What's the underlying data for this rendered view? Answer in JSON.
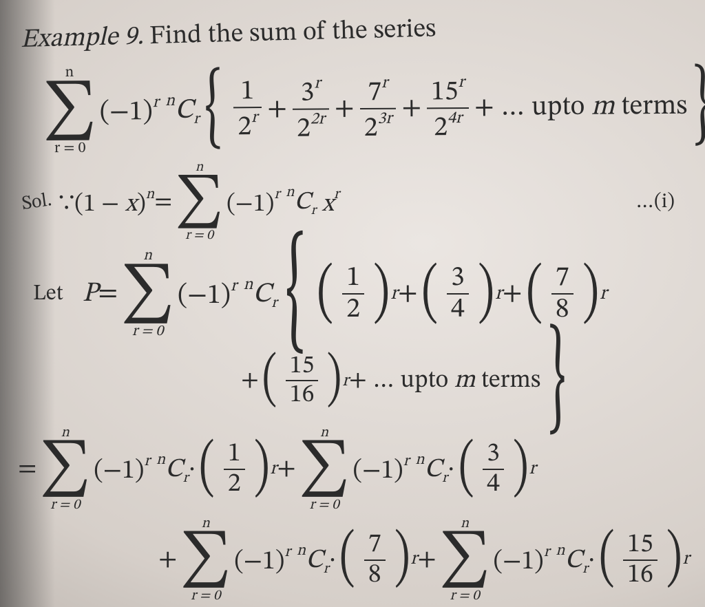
{
  "background_color": "#d6cfc9",
  "text_color": "#2b2b2b",
  "title": {
    "label": "Example 9.",
    "text": "Find the sum of the series"
  },
  "sigma": {
    "n": "n",
    "r0": "r = 0"
  },
  "expr1": {
    "pre": "(−1)",
    "C": "C",
    "fr1": {
      "num": "1",
      "den": "2"
    },
    "fr2": {
      "num": "3",
      "den": "2"
    },
    "fr3": {
      "num": "7",
      "den": "2"
    },
    "fr4": {
      "num": "15",
      "den": "2"
    },
    "exp_r": "r",
    "exp_2r": "2r",
    "exp_3r": "3r",
    "exp_4r": "4r",
    "tail": " + … upto ",
    "m": "m",
    "terms": " terms",
    "dot": "."
  },
  "line3": {
    "sol": "Sol.",
    "bec": "∵",
    "lhs1": "(1 − ",
    "x": "x",
    "lhs2": ")",
    "n": "n",
    "eq": " = ",
    "rhs_x": "x",
    "rhs_r": "r",
    "tag": "…(i)"
  },
  "line4": {
    "let": "Let",
    "P": "P",
    "eq": " = "
  },
  "fracs": {
    "a": {
      "num": "1",
      "den": "2"
    },
    "b": {
      "num": "3",
      "den": "4"
    },
    "c": {
      "num": "7",
      "den": "8"
    },
    "d": {
      "num": "15",
      "den": "16"
    }
  },
  "tail2": {
    "plus": "+ ",
    "dots": " + … upto ",
    "m": "m",
    "terms": " terms"
  },
  "line6_eq": "= ",
  "plus": " + ",
  "cdot": " · ",
  "line8": "+ … upto  m  terms"
}
